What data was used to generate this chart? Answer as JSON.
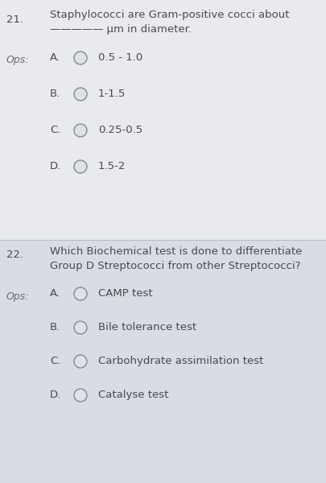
{
  "bg_color": "#dde1e8",
  "q1_bg_color": "#e8eaee",
  "q2_bg_color": "#d8dce4",
  "text_color": "#4a4a4a",
  "label_color": "#6a6a6a",
  "q1_number": "21.",
  "q1_text_line1": "Staphylococci are Gram-positive cocci about",
  "q1_text_line2": "————— μm in diameter.",
  "q1_ops_label": "Ops:",
  "q1_options": [
    {
      "letter": "A.",
      "text": "0.5 - 1.0"
    },
    {
      "letter": "B.",
      "text": "1-1.5"
    },
    {
      "letter": "C.",
      "text": "0.25-0.5"
    },
    {
      "letter": "D.",
      "text": "1.5-2"
    }
  ],
  "q2_number": "22.",
  "q2_text_line1": "Which Biochemical test is done to differentiate",
  "q2_text_line2": "Group D Streptococci from other Streptococci?",
  "q2_ops_label": "Ops:",
  "q2_options": [
    {
      "letter": "A.",
      "text": "CAMP test"
    },
    {
      "letter": "B.",
      "text": "Bile tolerance test"
    },
    {
      "letter": "C.",
      "text": "Carbohydrate assimilation test"
    },
    {
      "letter": "D.",
      "text": "Catalyse test"
    }
  ],
  "divider_color": "#b8bcc4",
  "circle_edge_color": "#888888",
  "circle_face_color": "#dde1e8",
  "font_size_question": 9.5,
  "font_size_option": 9.5,
  "font_size_ops": 9.0,
  "font_size_number": 9.5
}
